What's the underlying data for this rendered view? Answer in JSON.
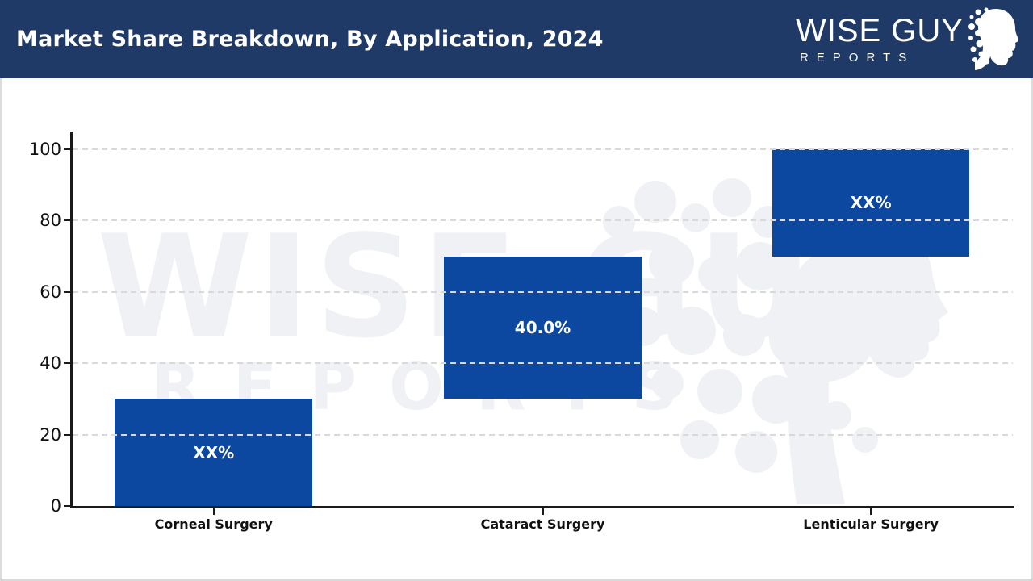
{
  "header": {
    "title": "Market Share Breakdown, By Application, 2024",
    "logo": {
      "name": "WISE GUY",
      "sub": "REPORTS"
    }
  },
  "watermark": {
    "line1": "WISE GUY",
    "line2": "REPORTS"
  },
  "colors": {
    "header_bg": "#203a68",
    "bar": "#0c48a0",
    "bar_label": "#ffffff",
    "grid": "#d9d9d9",
    "axis": "#1a1a1a",
    "tick_label": "#111111",
    "watermark": "#f0f1f5"
  },
  "chart_data": {
    "type": "bar",
    "subtype": "waterfall-style floating segments",
    "title": "Market Share Breakdown, By Application, 2024",
    "categories": [
      "Corneal Surgery",
      "Cataract Surgery",
      "Lenticular Surgery"
    ],
    "segments": [
      {
        "category": "Corneal Surgery",
        "start": 0,
        "end": 30,
        "label": "XX%"
      },
      {
        "category": "Cataract Surgery",
        "start": 30,
        "end": 70,
        "label": "40.0%"
      },
      {
        "category": "Lenticular Surgery",
        "start": 70,
        "end": 100,
        "label": "XX%"
      }
    ],
    "yticks": [
      0,
      20,
      40,
      60,
      80,
      100
    ],
    "ylim": [
      0,
      105
    ],
    "xlabel": "",
    "ylabel": "",
    "grid": {
      "horizontal": true,
      "style": "dashed",
      "drawn_above_bars": true
    },
    "legend": "none"
  }
}
